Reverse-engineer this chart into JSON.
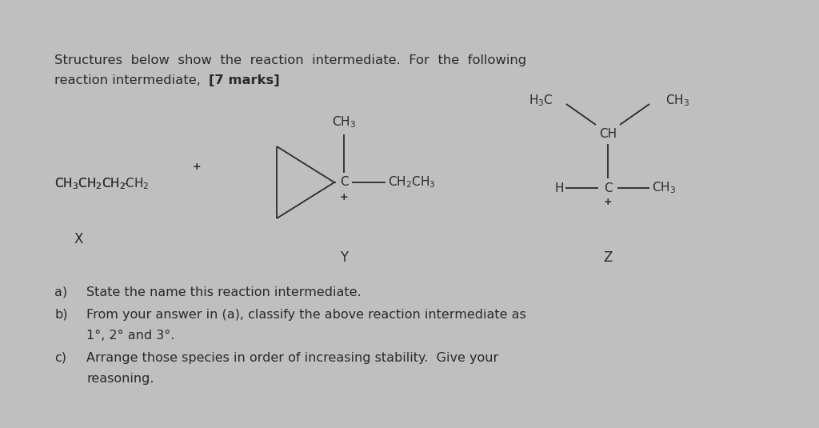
{
  "background_color": "#c0bfbf",
  "text_color": "#2a2a2a",
  "title_line1": "Structures  below  show  the  reaction  intermediate.  For  the  following",
  "title_line2": "reaction intermediate, [7 marks]",
  "title_bold_part": "[7 marks]",
  "label_X": "X",
  "label_Y": "Y",
  "label_Z": "Z",
  "font_size_title": 11.8,
  "font_size_structure": 11.0,
  "font_size_label": 12.0,
  "font_size_question": 11.5,
  "font_size_plus": 9.0
}
